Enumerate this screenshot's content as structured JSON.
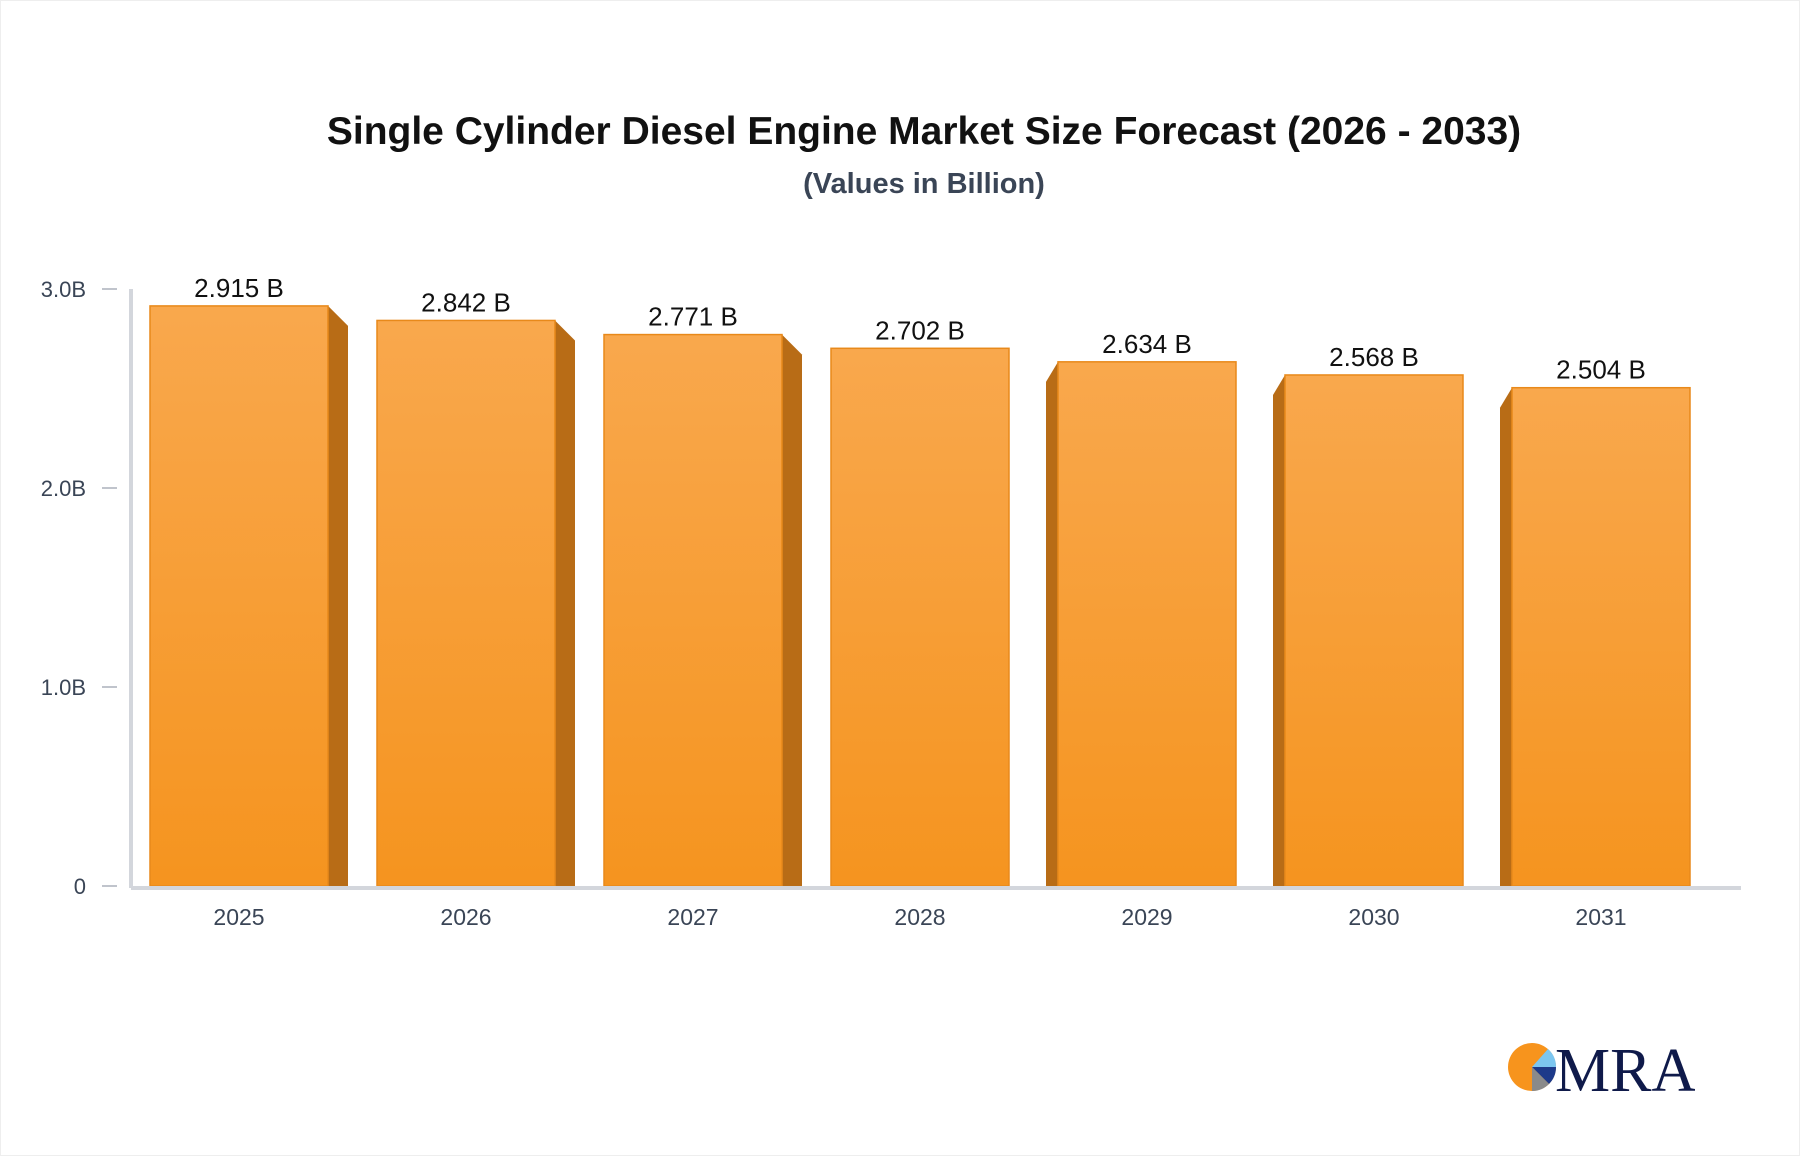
{
  "chart_data": {
    "type": "bar",
    "title": "Single Cylinder Diesel Engine Market Size Forecast (2026 - 2033)",
    "subtitle": "(Values in Billion)",
    "categories": [
      "2025",
      "2026",
      "2027",
      "2028",
      "2029",
      "2030",
      "2031"
    ],
    "values": [
      2.915,
      2.842,
      2.771,
      2.702,
      2.634,
      2.568,
      2.504
    ],
    "data_labels": [
      "2.915 B",
      "2.842 B",
      "2.771 B",
      "2.702 B",
      "2.634 B",
      "2.568 B",
      "2.504 B"
    ],
    "yticks": [
      {
        "value": 0,
        "label": "0"
      },
      {
        "value": 1,
        "label": "1.0B"
      },
      {
        "value": 2,
        "label": "2.0B"
      },
      {
        "value": 3,
        "label": "3.0B"
      }
    ],
    "ylim": [
      0,
      3
    ],
    "xlabel": "",
    "ylabel": "",
    "grid": false,
    "bar_color": "#f7a13e",
    "bar_side_color": "#b86c16"
  },
  "logo": {
    "text": "MRA",
    "color": "#0f1a4a",
    "accent": "#f7941d"
  }
}
